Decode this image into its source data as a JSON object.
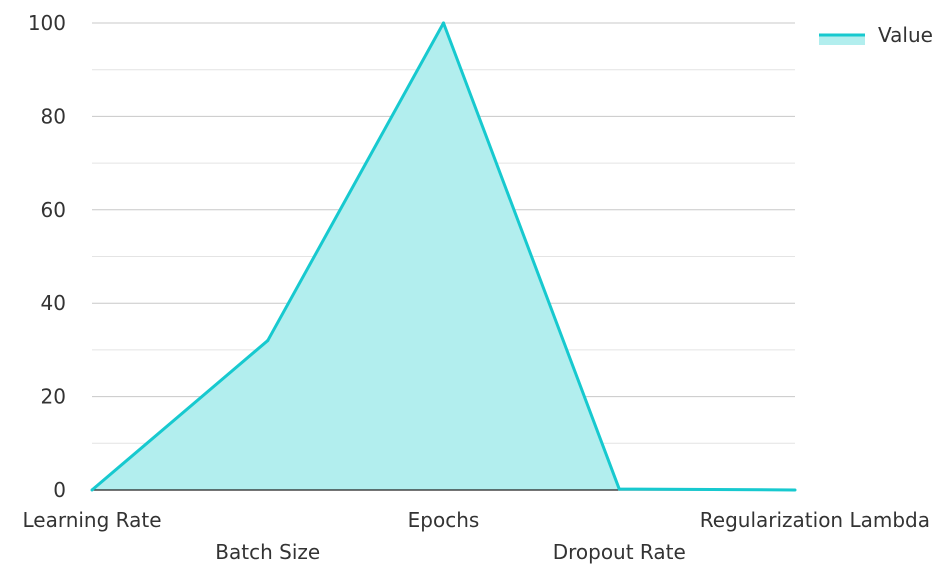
{
  "chart_data": {
    "type": "area",
    "categories": [
      "Learning Rate",
      "Batch Size",
      "Epochs",
      "Dropout Rate",
      "Regularization Lambda"
    ],
    "series": [
      {
        "name": "Value",
        "values": [
          0.001,
          32,
          100,
          0.2,
          0.01
        ]
      }
    ],
    "ylim": [
      0,
      100
    ],
    "yticks": [
      0,
      20,
      40,
      60,
      80,
      100
    ],
    "grid": true,
    "legend": "top-right",
    "colors": {
      "line": "#17c9cf",
      "fill": "#b2eeee"
    }
  }
}
